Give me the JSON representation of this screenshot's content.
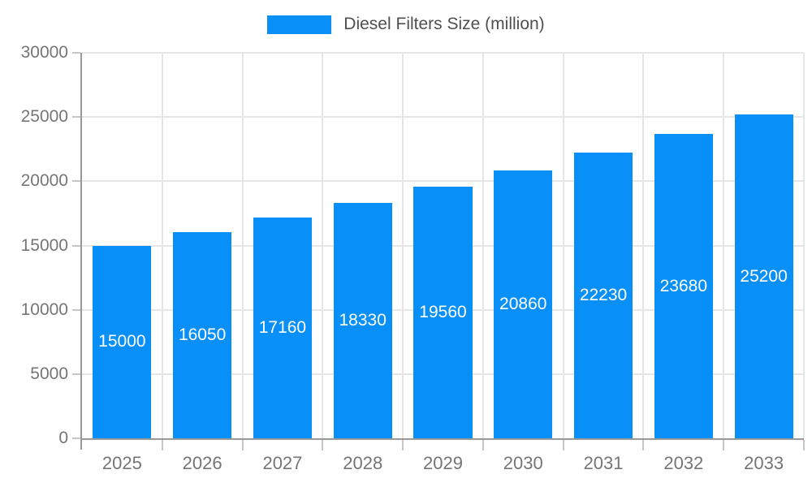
{
  "legend": {
    "label": "Diesel Filters Size (million)"
  },
  "colors": {
    "bar": "#0990f8",
    "grid": "#e6e6e6",
    "axis": "#999999",
    "tick_mark": "#c6c6c6",
    "tick_text": "#757575",
    "legend_text": "#4f4f4f",
    "bar_label_text": "#ffffff",
    "background": "#ffffff"
  },
  "chart_data": {
    "type": "bar",
    "title": "Diesel Filters Size (million)",
    "categories": [
      "2025",
      "2026",
      "2027",
      "2028",
      "2029",
      "2030",
      "2031",
      "2032",
      "2033"
    ],
    "values": [
      15000,
      16050,
      17160,
      18330,
      19560,
      20860,
      22230,
      23680,
      25200
    ],
    "bar_labels": [
      "15000",
      "16050",
      "17160",
      "18330",
      "19560",
      "20860",
      "22230",
      "23680",
      "25200"
    ],
    "xlabel": "",
    "ylabel": "",
    "ylim": [
      0,
      30000
    ],
    "ytick_step": 5000,
    "ytick_labels": [
      "0",
      "5000",
      "10000",
      "15000",
      "20000",
      "25000",
      "30000"
    ],
    "grid": true,
    "legend_position": "top-center",
    "bar_label_position": "inside-center"
  }
}
